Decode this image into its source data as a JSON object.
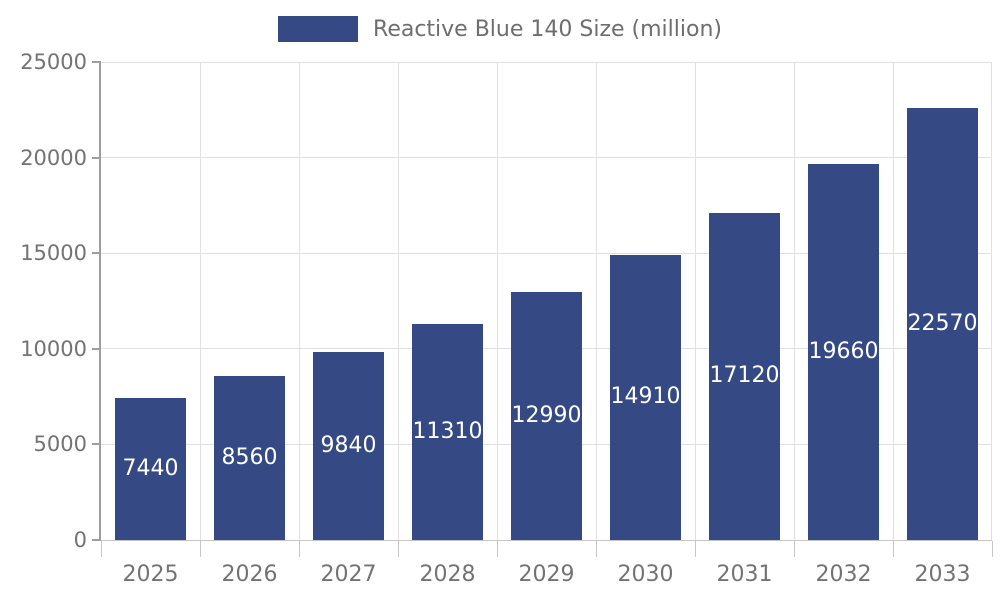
{
  "colors": {
    "bar": "#354A85",
    "bar_label_text": "#FFFFFF",
    "axis_text": "#737373",
    "legend_text": "#6E6E6E",
    "grid_line": "#E0E0E0",
    "y_axis_line": "#9E9E9E",
    "x_axis_line": "#C6C6C6",
    "background": "#FFFFFF"
  },
  "chart_data": {
    "type": "bar",
    "title": "",
    "legend": "Reactive Blue 140 Size (million)",
    "legend_position": "top-center",
    "categories": [
      "2025",
      "2026",
      "2027",
      "2028",
      "2029",
      "2030",
      "2031",
      "2032",
      "2033"
    ],
    "values": [
      7440,
      8560,
      9840,
      11310,
      12990,
      14910,
      17120,
      19660,
      22570
    ],
    "xlabel": "",
    "ylabel": "",
    "ylim": [
      0,
      25000
    ],
    "yticks": [
      0,
      5000,
      10000,
      15000,
      20000,
      25000
    ],
    "grid": "horizontal-and-vertical",
    "bar_value_labels": "inside-center-white"
  }
}
